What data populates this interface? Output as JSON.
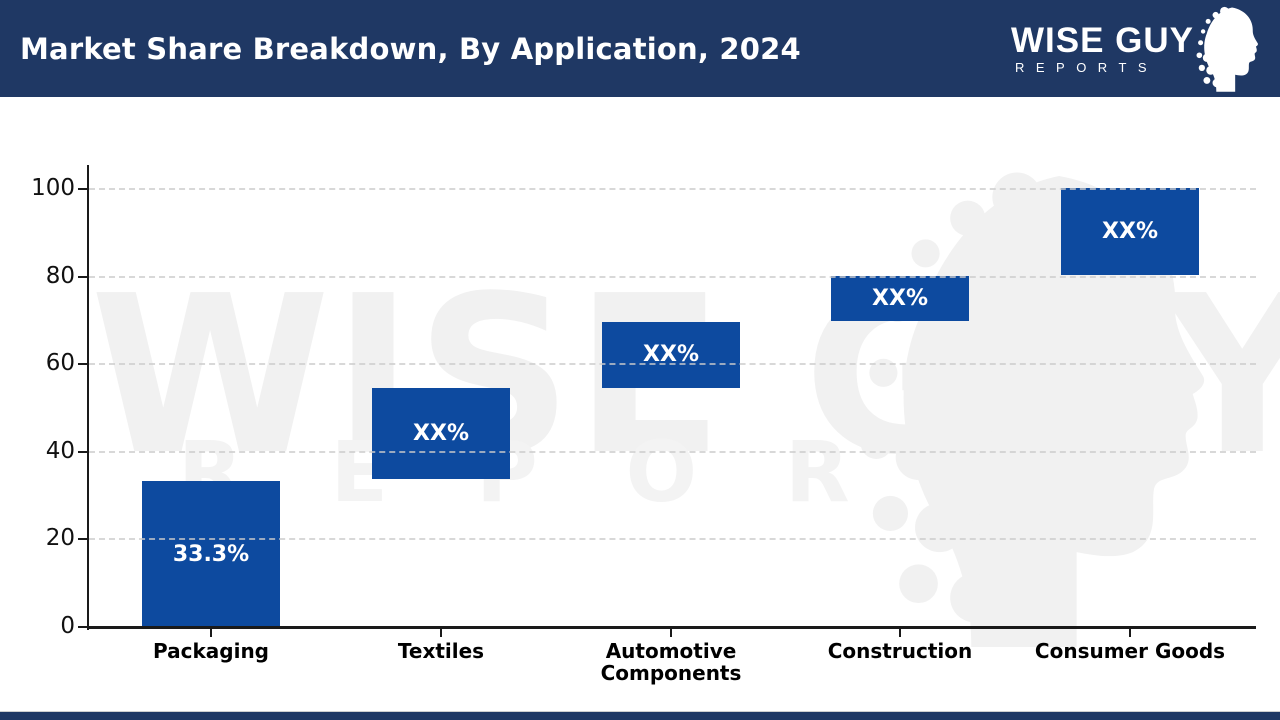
{
  "header": {
    "title": "Market Share Breakdown, By Application, 2024",
    "logo": {
      "line1": "WISE GUY",
      "line2": "REPORTS"
    }
  },
  "watermark": {
    "line1": "WISE GUY",
    "line2": "REPORTS"
  },
  "chart_data": {
    "type": "bar",
    "subtype": "waterfall",
    "title": "Market Share Breakdown, By Application, 2024",
    "categories": [
      "Packaging",
      "Textiles",
      "Automotive\nComponents",
      "Construction",
      "Consumer Goods"
    ],
    "segments": [
      {
        "category": "Packaging",
        "start": 0,
        "end": 33.3,
        "label": "33.3%"
      },
      {
        "category": "Textiles",
        "start": 33.9,
        "end": 54.6,
        "label": "XX%"
      },
      {
        "category": "Automotive Components",
        "start": 54.6,
        "end": 69.6,
        "label": "XX%"
      },
      {
        "category": "Construction",
        "start": 69.9,
        "end": 80.1,
        "label": "XX%"
      },
      {
        "category": "Consumer Goods",
        "start": 80.4,
        "end": 100.3,
        "label": "XX%"
      }
    ],
    "yticks": [
      0,
      20,
      40,
      60,
      80,
      100
    ],
    "ylim": [
      0,
      105
    ],
    "xlabel": "",
    "ylabel": "",
    "legend": "none",
    "grid": "horizontal dashed",
    "gridline_color": "#d4d4d4",
    "bar_color": "#0d4a9f",
    "bar_label_color": "#ffffff",
    "header_color": "#1f3864"
  }
}
